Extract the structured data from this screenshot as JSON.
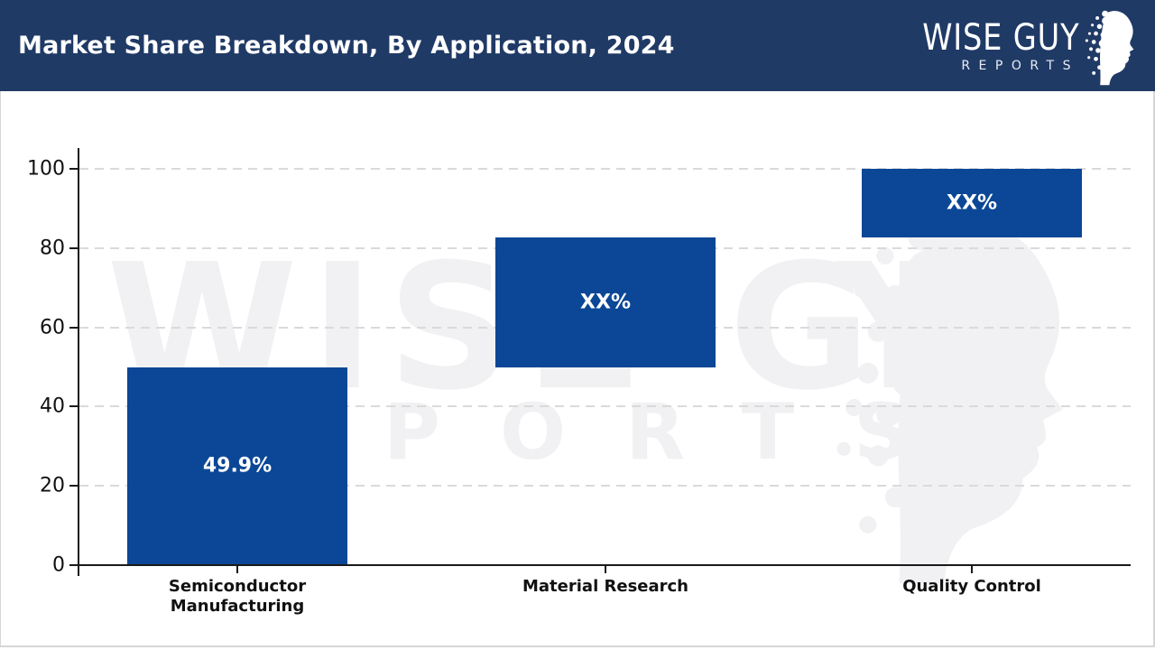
{
  "header": {
    "title": "Market Share Breakdown, By Application, 2024",
    "logo": {
      "line1": "WISE GUY",
      "line2": "REPORTS"
    }
  },
  "watermark": {
    "text_top": "WISE GU",
    "text_top_y": "Y",
    "text_bottom": "REPORTS"
  },
  "chart_data": {
    "type": "bar",
    "subtype": "waterfall-stacked-segments",
    "title": "Market Share Breakdown, By Application, 2024",
    "categories": [
      "Semiconductor Manufacturing",
      "Material Research",
      "Quality Control"
    ],
    "bars": [
      {
        "category": "Semiconductor Manufacturing",
        "start": 0,
        "end": 49.9,
        "label": "49.9%"
      },
      {
        "category": "Material Research",
        "start": 49.9,
        "end": 82.8,
        "label": "XX%"
      },
      {
        "category": "Quality Control",
        "start": 82.8,
        "end": 100,
        "label": "XX%"
      }
    ],
    "xlabel": "",
    "ylabel": "",
    "ylim": [
      0,
      100
    ],
    "yticks": [
      0,
      20,
      40,
      60,
      80,
      100
    ],
    "grid": "horizontal-dashed",
    "legend": "none",
    "bar_color": "#0b4796",
    "bar_label_color": "#ffffff",
    "axis_color": "#1a1a1a",
    "grid_color": "#dadada",
    "header_bg": "#203a66",
    "background": "#ffffff"
  }
}
